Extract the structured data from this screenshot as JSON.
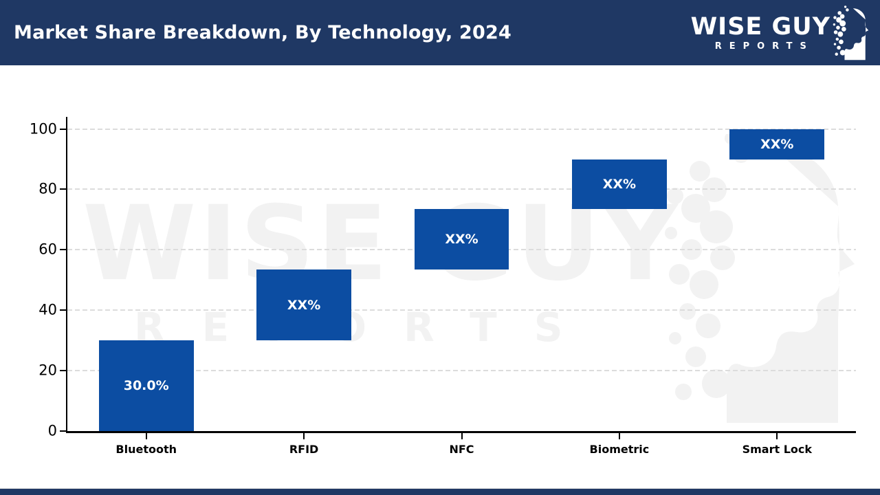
{
  "header": {
    "title": "Market Share Breakdown, By Technology, 2024",
    "logo_line1": "WISE GUY",
    "logo_line2": "REPORTS"
  },
  "watermark": {
    "line1": "WISE GUY",
    "line2": "REPORTS"
  },
  "colors": {
    "header_bg": "#1F3864",
    "footer_bg": "#1F3864",
    "bar_fill": "#0C4DA2",
    "bar_label_text": "#FFFFFF",
    "gridline": "#DCDCDC",
    "axis": "#000000",
    "watermark": "#F2F2F2"
  },
  "chart_data": {
    "type": "bar",
    "subtype": "waterfall",
    "title": "Market Share Breakdown, By Technology, 2024",
    "categories": [
      "Bluetooth",
      "RFID",
      "NFC",
      "Biometric",
      "Smart Lock"
    ],
    "series": [
      {
        "name": "Market Share (%)",
        "segments": [
          {
            "category": "Bluetooth",
            "start": 0,
            "end": 30.0,
            "value": 30.0,
            "label": "30.0%"
          },
          {
            "category": "RFID",
            "start": 30.0,
            "end": 53.5,
            "value": 23.5,
            "label": "XX%"
          },
          {
            "category": "NFC",
            "start": 53.5,
            "end": 73.5,
            "value": 20.0,
            "label": "XX%"
          },
          {
            "category": "Biometric",
            "start": 73.5,
            "end": 90.0,
            "value": 16.5,
            "label": "XX%"
          },
          {
            "category": "Smart Lock",
            "start": 90.0,
            "end": 100.0,
            "value": 10.0,
            "label": "XX%"
          }
        ]
      }
    ],
    "xlabel": "",
    "ylabel": "",
    "yticks": [
      0,
      20,
      40,
      60,
      80,
      100
    ],
    "ylim": [
      0,
      104
    ],
    "grid": "horizontal-dashed",
    "legend": "none"
  }
}
